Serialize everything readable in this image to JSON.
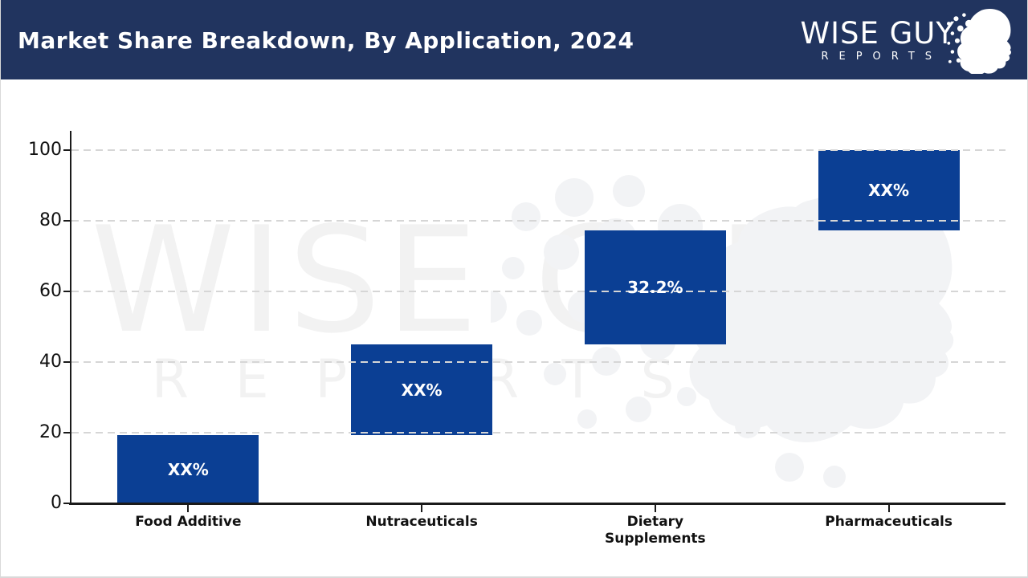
{
  "header": {
    "title": "Market Share Breakdown, By Application, 2024",
    "bg_color": "#21345f",
    "logo": {
      "line1": "WISE GUY",
      "line2": "REPORTS"
    }
  },
  "watermark": {
    "line1": "WISE GUY",
    "line2": "REPORTS"
  },
  "chart_data": {
    "type": "bar",
    "subtype": "floating-segment-waterfall",
    "title": "Market Share Breakdown, By Application, 2024",
    "categories": [
      "Food Additive",
      "Nutraceuticals",
      "Dietary Supplements",
      "Pharmaceuticals"
    ],
    "bars": [
      {
        "category": "Food Additive",
        "start": 0,
        "end": 19.3,
        "label": "XX%"
      },
      {
        "category": "Nutraceuticals",
        "start": 19.3,
        "end": 45,
        "label": "XX%"
      },
      {
        "category": "Dietary Supplements",
        "start": 45,
        "end": 77.2,
        "label": "32.2%"
      },
      {
        "category": "Pharmaceuticals",
        "start": 77.2,
        "end": 100,
        "label": "XX%"
      }
    ],
    "ylim": [
      0,
      100
    ],
    "yticks": [
      0,
      20,
      40,
      60,
      80,
      100
    ],
    "xlabel": "",
    "ylabel": "",
    "grid": "horizontal-dashed",
    "legend": "none",
    "bar_color": "#0b3f94",
    "bar_label_color": "#ffffff",
    "axis_color": "#1a1a1a",
    "grid_color": "#d6d6d6"
  }
}
